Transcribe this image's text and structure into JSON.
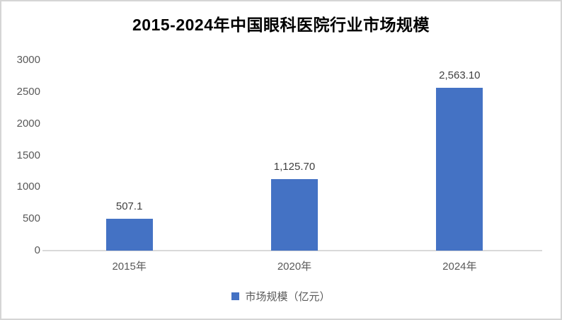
{
  "chart_data": {
    "type": "bar",
    "title": "2015-2024年中国眼科医院行业市场规模",
    "categories": [
      "2015年",
      "2020年",
      "2024年"
    ],
    "series": [
      {
        "name": "市场规模（亿元）",
        "values": [
          507.1,
          1125.7,
          2563.1
        ],
        "value_labels": [
          "507.1",
          "1,125.70",
          "2,563.10"
        ]
      }
    ],
    "xlabel": "",
    "ylabel": "",
    "ylim": [
      0,
      3000
    ],
    "yticks": [
      0,
      500,
      1000,
      1500,
      2000,
      2500,
      3000
    ],
    "grid": false,
    "legend_position": "bottom"
  },
  "legend": {
    "label": "市场规模（亿元）"
  },
  "colors": {
    "bar": "#4472c4",
    "axis_line": "#d9d9d9",
    "tick_label": "#595959",
    "data_label": "#404040",
    "title": "#000000",
    "border": "#d5d5d5",
    "background": "#ffffff"
  }
}
